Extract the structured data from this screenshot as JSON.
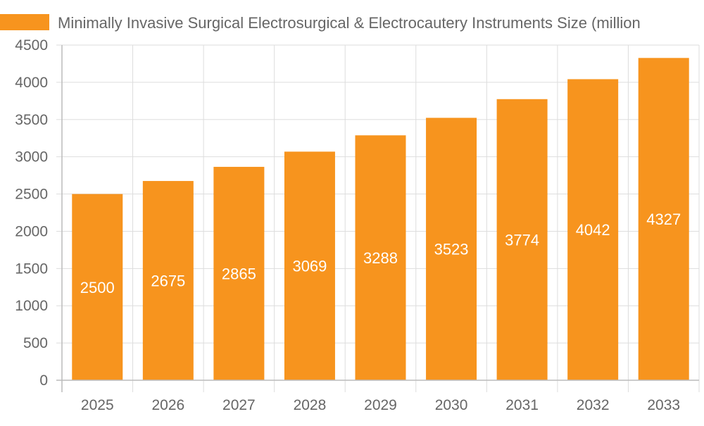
{
  "chart_data": {
    "type": "bar",
    "categories": [
      "2025",
      "2026",
      "2027",
      "2028",
      "2029",
      "2030",
      "2031",
      "2032",
      "2033"
    ],
    "series": [
      {
        "name": "Minimally Invasive Surgical Electrosurgical & Electrocautery Instruments Size (million",
        "values": [
          2500,
          2675,
          2865,
          3069,
          3288,
          3523,
          3774,
          4042,
          4327
        ],
        "color": "#f7941e"
      }
    ],
    "y_ticks": [
      "0",
      "500",
      "1000",
      "1500",
      "2000",
      "2500",
      "3000",
      "3500",
      "4000",
      "4500"
    ],
    "ylim": [
      0,
      4500
    ],
    "grid": true,
    "legend_position": "top-left",
    "data_labels": true,
    "data_label_color": "#ffffff",
    "grid_color": "#dddddd",
    "text_color": "#666666"
  }
}
